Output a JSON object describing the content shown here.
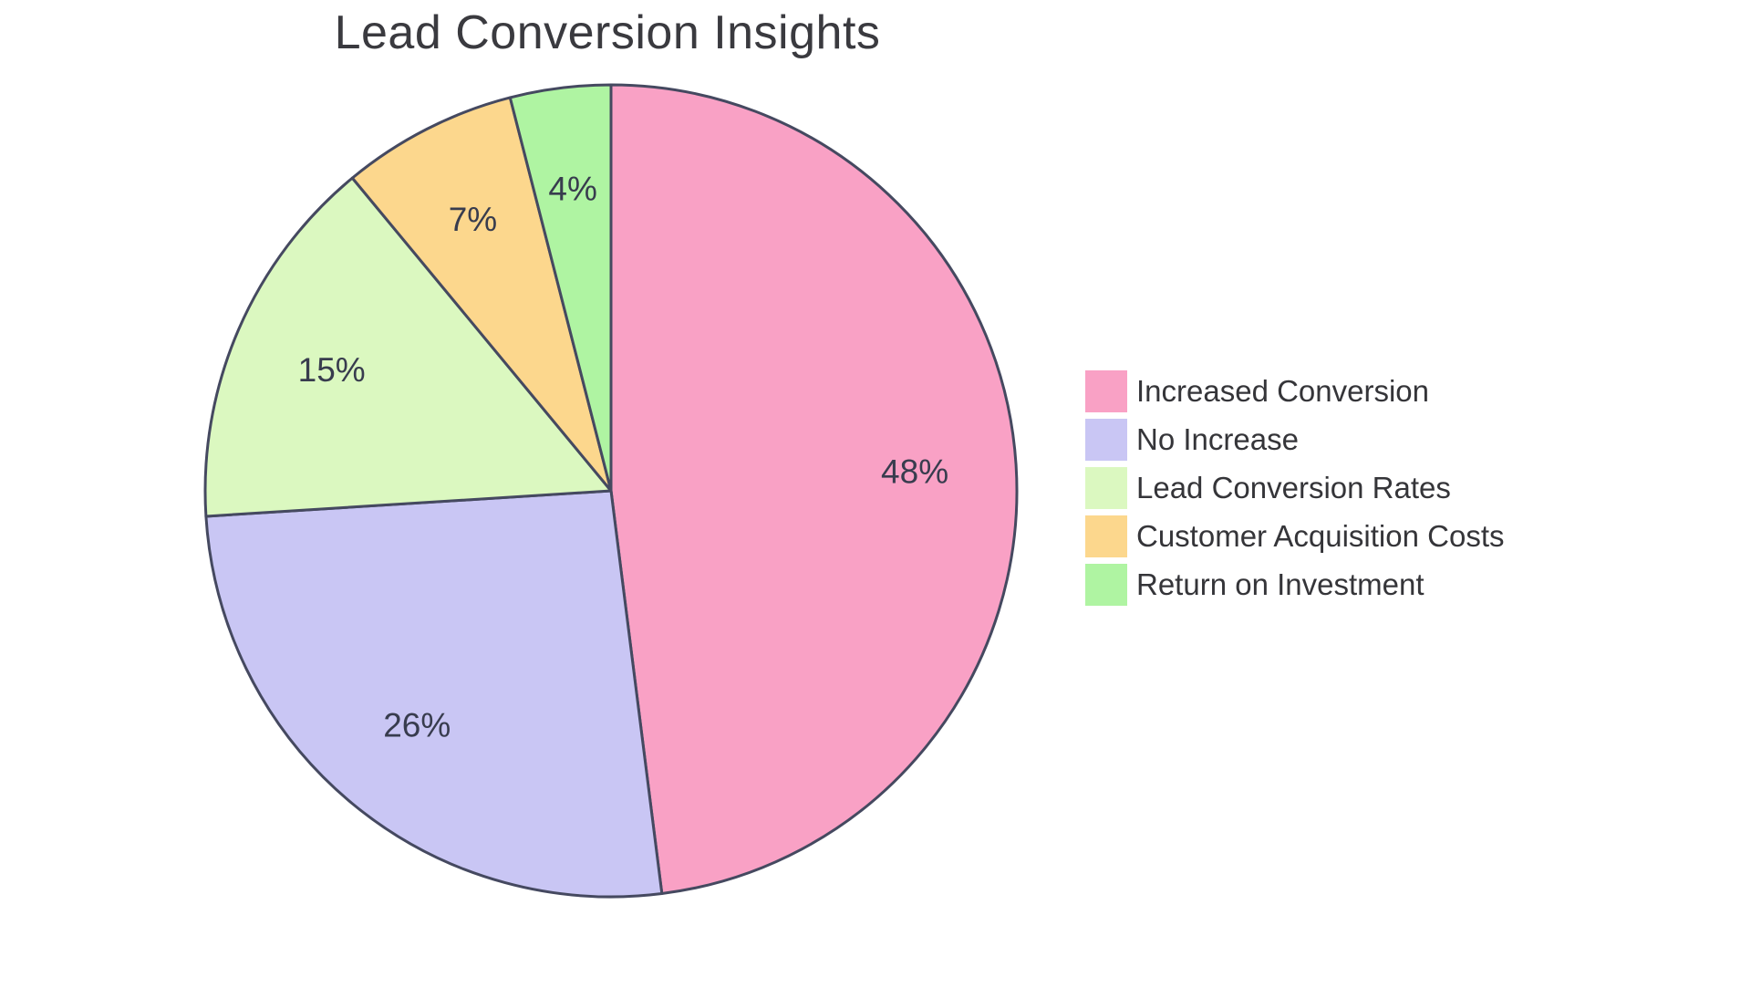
{
  "page": {
    "background_color": "#ffffff"
  },
  "chart_data": {
    "type": "pie",
    "title": "Lead Conversion Insights",
    "categories": [
      "Increased Conversion",
      "No Increase",
      "Lead Conversion Rates",
      "Customer Acquisition Costs",
      "Return on Investment"
    ],
    "values": [
      48,
      26,
      15,
      7,
      4
    ],
    "slice_labels": [
      "48%",
      "26%",
      "15%",
      "7%",
      "4%"
    ],
    "colors": [
      "#F9A1C5",
      "#C9C6F4",
      "#DBF8C0",
      "#FCD78D",
      "#AFF4A2"
    ],
    "stroke_color": "#454960",
    "slice_label_color": "#383C4E",
    "title_color": "#3A3A3F",
    "legend_text_color": "#353539",
    "start_angle_deg": 0,
    "direction": "clockwise",
    "legend_position": "right",
    "grid": false
  }
}
